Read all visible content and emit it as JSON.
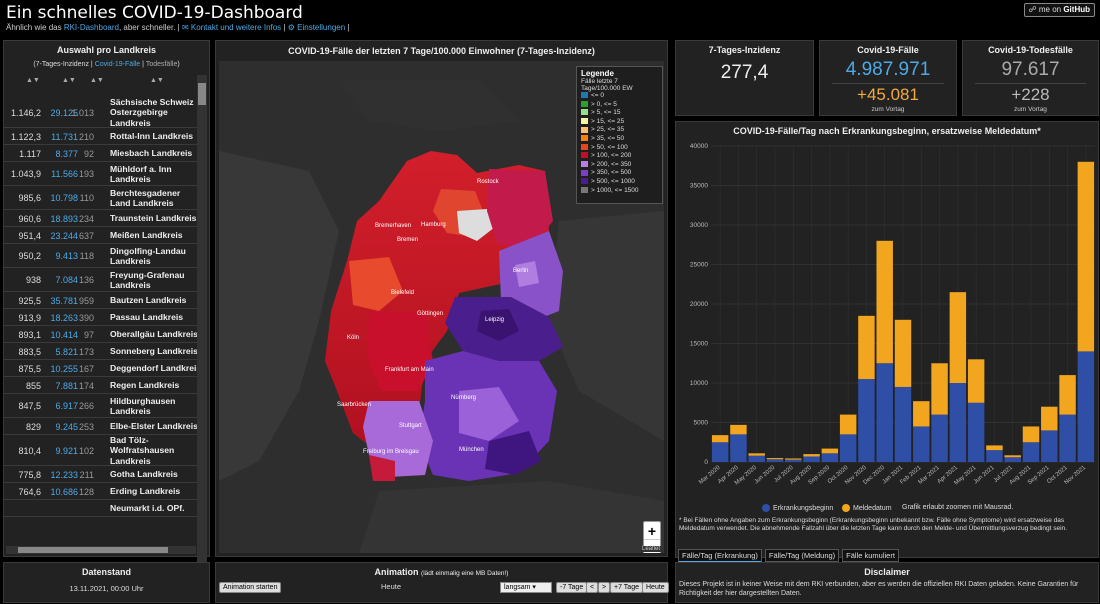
{
  "header": {
    "title": "Ein schnelles COVID-19-Dashboard",
    "sub_prefix": "Ähnlich wie das ",
    "sub_link": "RKI-Dashboard",
    "sub_suffix": ", aber schneller. |",
    "kontakt": "Kontakt und weitere Infos",
    "einstellungen": "Einstellungen",
    "sep": "|",
    "github": "me on",
    "github_b": "GitHub"
  },
  "left": {
    "title": "Auswahl pro Landkreis",
    "toggle": {
      "open": "(",
      "a": "7-Tages-Inzidenz",
      "sep1": " | ",
      "b": "Covid-19-Fälle",
      "sep2": " | ",
      "c": "Todesfälle",
      "close": ")"
    },
    "rows": [
      {
        "a": "1.146,2",
        "b": "29.125",
        "c": "1.013",
        "n": "Sächsische Schweiz\nOsterzgebirge\nLandkreis"
      },
      {
        "a": "1.122,3",
        "b": "11.731",
        "c": "210",
        "n": "Rottal-Inn Landkreis"
      },
      {
        "a": "1.117",
        "b": "8.377",
        "c": "92",
        "n": "Miesbach Landkreis"
      },
      {
        "a": "1.043,9",
        "b": "11.566",
        "c": "193",
        "n": "Mühldorf a. Inn\nLandkreis"
      },
      {
        "a": "985,6",
        "b": "10.798",
        "c": "110",
        "n": "Berchtesgadener\nLand Landkreis"
      },
      {
        "a": "960,6",
        "b": "18.893",
        "c": "234",
        "n": "Traunstein Landkreis"
      },
      {
        "a": "951,4",
        "b": "23.244",
        "c": "637",
        "n": "Meißen Landkreis"
      },
      {
        "a": "950,2",
        "b": "9.413",
        "c": "118",
        "n": "Dingolfing-Landau\nLandkreis"
      },
      {
        "a": "938",
        "b": "7.084",
        "c": "136",
        "n": "Freyung-Grafenau\nLandkreis"
      },
      {
        "a": "925,5",
        "b": "35.781",
        "c": "959",
        "n": "Bautzen Landkreis"
      },
      {
        "a": "913,9",
        "b": "18.263",
        "c": "390",
        "n": "Passau Landkreis"
      },
      {
        "a": "893,1",
        "b": "10.414",
        "c": "97",
        "n": "Oberallgäu Landkreis"
      },
      {
        "a": "883,5",
        "b": "5.821",
        "c": "173",
        "n": "Sonneberg Landkreis"
      },
      {
        "a": "875,5",
        "b": "10.255",
        "c": "167",
        "n": "Deggendorf Landkreis"
      },
      {
        "a": "855",
        "b": "7.881",
        "c": "174",
        "n": "Regen Landkreis"
      },
      {
        "a": "847,5",
        "b": "6.917",
        "c": "266",
        "n": "Hildburghausen\nLandkreis"
      },
      {
        "a": "829",
        "b": "9.245",
        "c": "253",
        "n": "Elbe-Elster Landkreis"
      },
      {
        "a": "810,4",
        "b": "9.921",
        "c": "102",
        "n": "Bad Tölz-\nWolfratshausen\nLandkreis"
      },
      {
        "a": "775,8",
        "b": "12.233",
        "c": "211",
        "n": "Gotha Landkreis"
      },
      {
        "a": "764,6",
        "b": "10.686",
        "c": "128",
        "n": "Erding Landkreis"
      },
      {
        "a": "",
        "b": "",
        "c": "",
        "n": "Neumarkt i.d. OPf."
      }
    ]
  },
  "map": {
    "title": "COVID-19-Fälle der letzten 7 Tage/100.000 Einwohner (7-Tages-Inzidenz)",
    "legend_title": "Legende",
    "legend_sub": "Fälle letzte 7 Tage/100.000 EW",
    "legend": [
      {
        "label": "<= 0",
        "color": "#1f77b4"
      },
      {
        "label": "> 0, <= 5",
        "color": "#2ca02c"
      },
      {
        "label": "> 5, <= 15",
        "color": "#98df8a"
      },
      {
        "label": "> 15, <= 25",
        "color": "#f5f5a0"
      },
      {
        "label": "> 25, <= 35",
        "color": "#fdbf6f"
      },
      {
        "label": "> 35, <= 50",
        "color": "#ff7f0e"
      },
      {
        "label": "> 50, <= 100",
        "color": "#e6461c"
      },
      {
        "label": "> 100, <= 200",
        "color": "#c40c2a"
      },
      {
        "label": "> 200, <= 350",
        "color": "#b97de6"
      },
      {
        "label": "> 350, <= 500",
        "color": "#7b3fc4"
      },
      {
        "label": "> 500, <= 1000",
        "color": "#4a1c8c"
      },
      {
        "label": "> 1000, <= 1500",
        "color": "#777"
      }
    ],
    "cities": [
      "Rostock",
      "Bremerhaven",
      "Hamburg",
      "Bremen",
      "Berlin",
      "Bielefeld",
      "Göttingen",
      "Leipzig",
      "Köln",
      "Frankfurt am Main",
      "Saarbrücken",
      "Nürnberg",
      "Stuttgart",
      "Freiburg im Breisgau",
      "München"
    ],
    "zoom_in": "+",
    "zoom_out": "−",
    "attribution": "Leaflet"
  },
  "stats": {
    "inzidenz": {
      "title": "7-Tages-Inzidenz",
      "value": "277,4"
    },
    "faelle": {
      "title": "Covid-19-Fälle",
      "value": "4.987.971",
      "diff": "+45.081",
      "vor": "zum Vortag"
    },
    "tode": {
      "title": "Covid-19-Todesfälle",
      "value": "97.617",
      "diff": "+228",
      "vor": "zum Vortag"
    }
  },
  "chart": {
    "title": "COVID-19-Fälle/Tag nach Erkrankungsbeginn, ersatzweise Meldedatum*",
    "legend_a": "Erkrankungsbeginn",
    "legend_b": "Meldedatum",
    "legend_note": "Grafik erlaubt zoomen mit Mausrad.",
    "note": "* Bei Fällen ohne Angaben zum Erkrankungsbeginn (Erkrankungsbeginn unbekannt bzw. Fälle ohne Symptome) wird ersatzweise das Meldedatum verwendet. Die abnehmende Fallzahl über die letzten Tage kann durch den Melde- und Übermittlungsverzug bedingt sein.",
    "tabs": [
      "Fälle/Tag (Erkrankung)",
      "Fälle/Tag (Meldung)",
      "Fälle kumuliert"
    ],
    "colors": {
      "a": "#2f4fa6",
      "b": "#f2a51f"
    }
  },
  "chart_data": {
    "type": "bar",
    "stacked": true,
    "categories": [
      "Mar 2020",
      "Apr 2020",
      "May 2020",
      "Jun 2020",
      "Jul 2020",
      "Aug 2020",
      "Sep 2020",
      "Oct 2020",
      "Nov 2020",
      "Dec 2020",
      "Jan 2021",
      "Feb 2021",
      "Mar 2021",
      "Apr 2021",
      "May 2021",
      "Jun 2021",
      "Jul 2021",
      "Aug 2021",
      "Sep 2021",
      "Oct 2021",
      "Nov 2021"
    ],
    "series": [
      {
        "name": "Erkrankungsbeginn",
        "values": [
          2500,
          3500,
          800,
          350,
          300,
          700,
          1100,
          3500,
          10500,
          12500,
          9500,
          4500,
          6000,
          10000,
          7500,
          1500,
          600,
          2500,
          4000,
          6000,
          14000
        ]
      },
      {
        "name": "Meldedatum",
        "values": [
          900,
          1200,
          300,
          150,
          150,
          300,
          600,
          2500,
          8000,
          15500,
          8500,
          3200,
          6500,
          11500,
          5500,
          600,
          250,
          2000,
          3000,
          5000,
          24000
        ]
      }
    ],
    "ylim": [
      0,
      40000
    ],
    "yticks": [
      "0",
      "5000",
      "10000",
      "15000",
      "20000",
      "25000",
      "30000",
      "35000",
      "40000"
    ],
    "grid": true
  },
  "datum": {
    "title": "Datenstand",
    "value": "13.11.2021, 00:00 Uhr"
  },
  "anim": {
    "title": "Animation",
    "title_note": "(lädt einmalig eine MB Daten!)",
    "start": "Animation starten",
    "heute": "Heute",
    "speed": "langsam ▾",
    "minus7": "-7 Tage",
    "lt": "<",
    "gt": ">",
    "plus7": "+7 Tage",
    "today": "Heute"
  },
  "disc": {
    "title": "Disclaimer",
    "text": "Dieses Projekt ist in keiner Weise mit dem RKI verbunden, aber es werden die offiziellen RKI Daten geladen. Keine Garantien für Richtigkeit der hier dargestellten Daten."
  }
}
